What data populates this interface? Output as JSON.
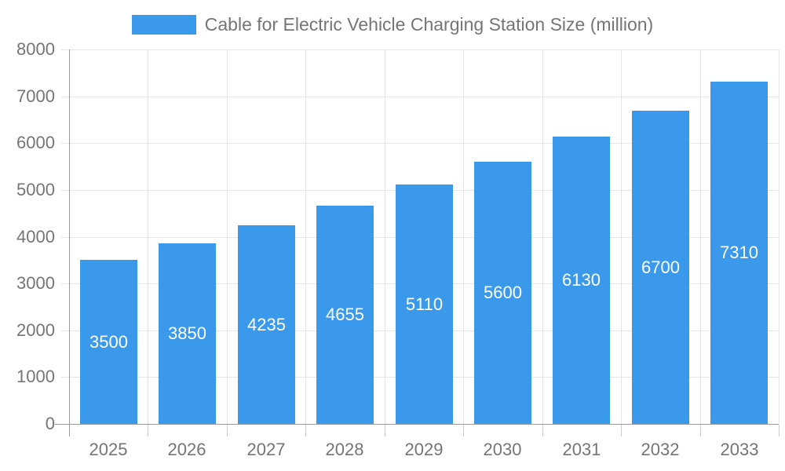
{
  "chart_data": {
    "type": "bar",
    "title": "Cable for Electric Vehicle Charging Station Size (million)",
    "categories": [
      "2025",
      "2026",
      "2027",
      "2028",
      "2029",
      "2030",
      "2031",
      "2032",
      "2033"
    ],
    "series": [
      {
        "name": "Cable for Electric Vehicle Charging Station Size (million)",
        "values": [
          3500,
          3850,
          4235,
          4655,
          5110,
          5600,
          6130,
          6700,
          7310
        ]
      }
    ],
    "value_labels_shown": true,
    "xlabel": "",
    "ylabel": "",
    "ylim": [
      0,
      8000
    ],
    "yticks": [
      0,
      1000,
      2000,
      3000,
      4000,
      5000,
      6000,
      7000,
      8000
    ],
    "grid": true,
    "legend_position": "top-center",
    "colors": {
      "bar": "#3B99EC",
      "grid_line": "#E6E6E6",
      "axis_line": "#999999",
      "category_tick": "#CCCCCC",
      "tick_text": "#757575",
      "value_label_text": "#FFFFFF",
      "background": "#FFFFFF"
    }
  }
}
